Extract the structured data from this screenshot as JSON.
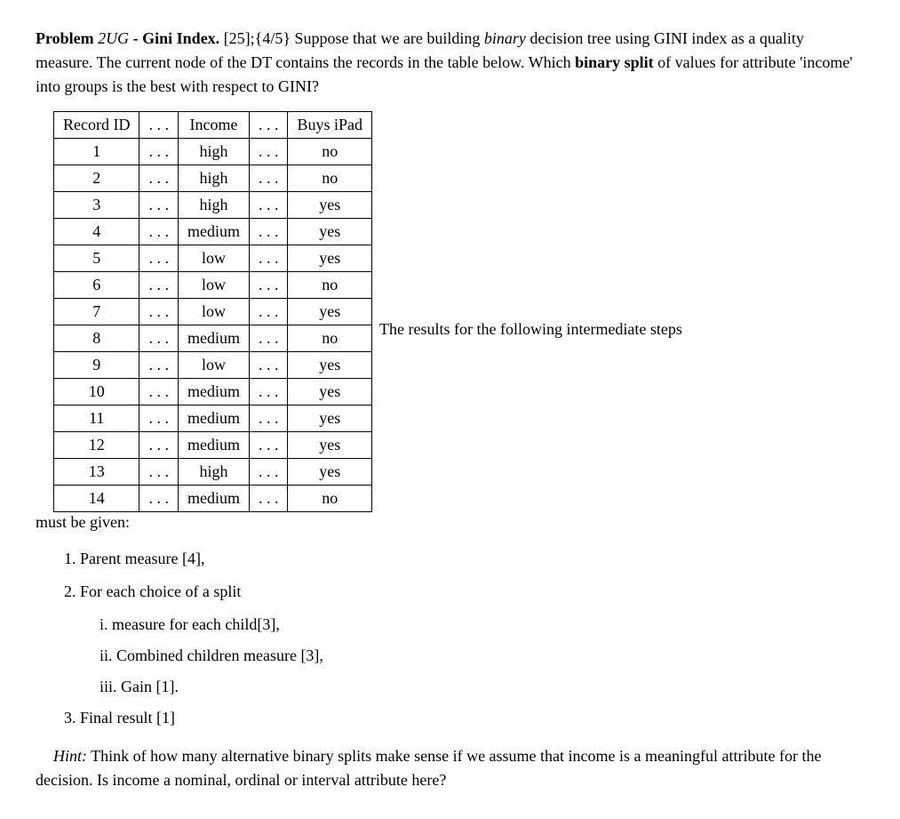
{
  "problem": {
    "label_bold1": "Problem",
    "label_code": " 2UG ",
    "label_bold2": "- Gini Index.",
    "meta": "  [25];{4/5}   Suppose that we are building ",
    "italic_word": "binary",
    "line1_rest": " decision tree using GINI index as a quality measure. The current node of the DT contains the records in the table below. Which ",
    "bold_split": "binary split",
    "line2_rest": " of values for attribute 'income' into groups is the best with respect to GINI?"
  },
  "table": {
    "headers": [
      "Record ID",
      ". . .",
      "Income",
      ". . .",
      "Buys iPad"
    ],
    "rows": [
      [
        "1",
        ". . .",
        "high",
        ". . .",
        "no"
      ],
      [
        "2",
        ". . .",
        "high",
        ". . .",
        "no"
      ],
      [
        "3",
        ". . .",
        "high",
        ". . .",
        "yes"
      ],
      [
        "4",
        ". . .",
        "medium",
        ". . .",
        "yes"
      ],
      [
        "5",
        ". . .",
        "low",
        ". . .",
        "yes"
      ],
      [
        "6",
        ". . .",
        "low",
        ". . .",
        "no"
      ],
      [
        "7",
        ". . .",
        "low",
        ". . .",
        "yes"
      ],
      [
        "8",
        ". . .",
        "medium",
        ". . .",
        "no"
      ],
      [
        "9",
        ". . .",
        "low",
        ". . .",
        "yes"
      ],
      [
        "10",
        ". . .",
        "medium",
        ". . .",
        "yes"
      ],
      [
        "11",
        ". . .",
        "medium",
        ". . .",
        "yes"
      ],
      [
        "12",
        ". . .",
        "medium",
        ". . .",
        "yes"
      ],
      [
        "13",
        ". . .",
        "high",
        ". . .",
        "yes"
      ],
      [
        "14",
        ". . .",
        "medium",
        ". . .",
        "no"
      ]
    ]
  },
  "side_note": "The results for the following intermediate steps",
  "after_table": "must be given:",
  "list1": {
    "items": [
      "1. Parent measure [4],",
      "2. For each choice of a split",
      "3. Final result [1]"
    ]
  },
  "list2": {
    "items": [
      "i. measure for each child[3],",
      "ii. Combined children measure [3],",
      "iii. Gain [1]."
    ]
  },
  "hint_label": "Hint:",
  "hint_text": " Think of how many alternative binary splits make sense if we assume that income is a meaningful attribute for the decision. Is income a nominal, ordinal or interval attribute here?"
}
